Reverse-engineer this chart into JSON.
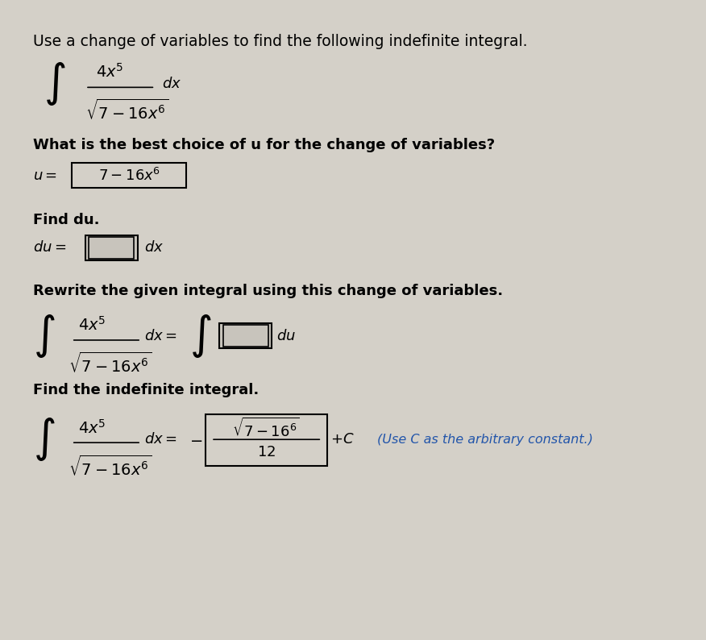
{
  "background_color": "#d4d0c8",
  "paper_color": "#e8e4dc",
  "title_line": "Use a change of variables to find the following indefinite integral.",
  "question1": "What is the best choice of u for the change of variables?",
  "u_answer": "u = 7 − 16x⁶",
  "find_du": "Find du.",
  "du_line": "du =",
  "du_blank": true,
  "dx_after_blank": " dx",
  "rewrite_line": "Rewrite the given integral using this change of variables.",
  "find_indefinite": "Find the indefinite integral.",
  "answer_note": "(Use C as the arbitrary constant.)",
  "fig_width": 8.76,
  "fig_height": 7.94,
  "dpi": 100
}
